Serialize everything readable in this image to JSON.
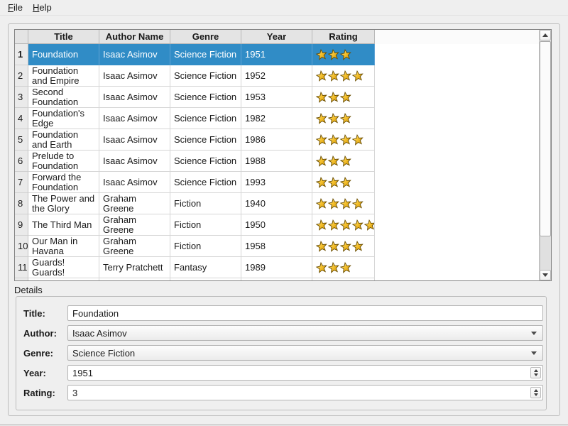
{
  "menu": {
    "items": [
      {
        "label": "File"
      },
      {
        "label": "Help"
      }
    ]
  },
  "table": {
    "headers": [
      "Title",
      "Author Name",
      "Genre",
      "Year",
      "Rating"
    ],
    "rows": [
      {
        "num": "1",
        "title": "Foundation",
        "author": "Isaac Asimov",
        "genre": "Science Fiction",
        "year": "1951",
        "rating": 3,
        "selected": true
      },
      {
        "num": "2",
        "title": "Foundation\nand Empire",
        "author": "Isaac Asimov",
        "genre": "Science Fiction",
        "year": "1952",
        "rating": 4,
        "selected": false
      },
      {
        "num": "3",
        "title": "Second\nFoundation",
        "author": "Isaac Asimov",
        "genre": "Science Fiction",
        "year": "1953",
        "rating": 3,
        "selected": false
      },
      {
        "num": "4",
        "title": "Foundation's\nEdge",
        "author": "Isaac Asimov",
        "genre": "Science Fiction",
        "year": "1982",
        "rating": 3,
        "selected": false
      },
      {
        "num": "5",
        "title": "Foundation\nand Earth",
        "author": "Isaac Asimov",
        "genre": "Science Fiction",
        "year": "1986",
        "rating": 4,
        "selected": false
      },
      {
        "num": "6",
        "title": "Prelude to\nFoundation",
        "author": "Isaac Asimov",
        "genre": "Science Fiction",
        "year": "1988",
        "rating": 3,
        "selected": false
      },
      {
        "num": "7",
        "title": "Forward the\nFoundation",
        "author": "Isaac Asimov",
        "genre": "Science Fiction",
        "year": "1993",
        "rating": 3,
        "selected": false
      },
      {
        "num": "8",
        "title": "The Power and\nthe Glory",
        "author": "Graham\nGreene",
        "genre": "Fiction",
        "year": "1940",
        "rating": 4,
        "selected": false
      },
      {
        "num": "9",
        "title": "The Third Man",
        "author": "Graham\nGreene",
        "genre": "Fiction",
        "year": "1950",
        "rating": 5,
        "selected": false
      },
      {
        "num": "10",
        "title": "Our Man in\nHavana",
        "author": "Graham\nGreene",
        "genre": "Fiction",
        "year": "1958",
        "rating": 4,
        "selected": false
      },
      {
        "num": "11",
        "title": "Guards!\nGuards!",
        "author": "Terry Pratchett",
        "genre": "Fantasy",
        "year": "1989",
        "rating": 3,
        "selected": false
      }
    ]
  },
  "details": {
    "group_label": "Details",
    "fields": [
      {
        "name": "title",
        "label": "Title:",
        "value": "Foundation",
        "type": "text"
      },
      {
        "name": "author",
        "label": "Author:",
        "value": "Isaac Asimov",
        "type": "combo"
      },
      {
        "name": "genre",
        "label": "Genre:",
        "value": "Science Fiction",
        "type": "combo"
      },
      {
        "name": "year",
        "label": "Year:",
        "value": "1951",
        "type": "spin"
      },
      {
        "name": "rating",
        "label": "Rating:",
        "value": "3",
        "type": "spin"
      }
    ]
  },
  "colors": {
    "selection_bg": "#308cc6",
    "selection_text": "#ffffff",
    "star_fill_light": "#ffe98a",
    "star_fill_dark": "#e0a000",
    "star_outline": "#6b4e00"
  }
}
